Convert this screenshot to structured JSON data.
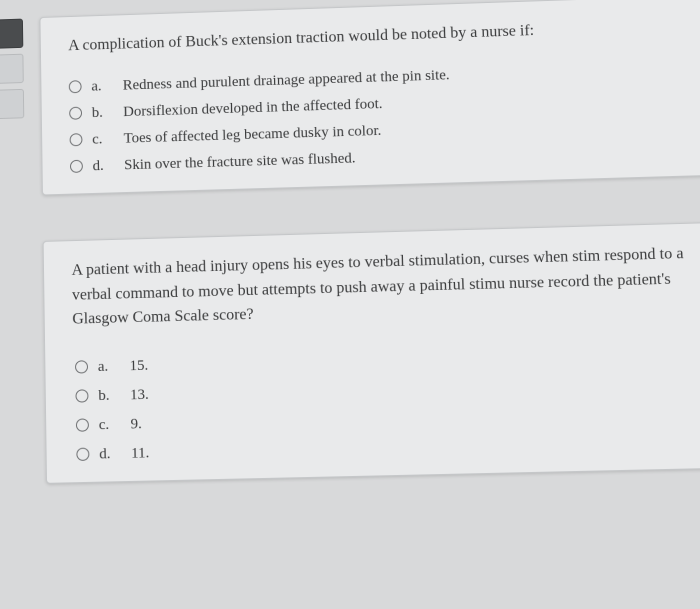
{
  "questions": [
    {
      "prompt": "A complication of Buck's extension traction would be noted by a nurse if:",
      "options": [
        {
          "letter": "a.",
          "text": "Redness and purulent drainage appeared at the pin site."
        },
        {
          "letter": "b.",
          "text": "Dorsiflexion developed in the affected foot."
        },
        {
          "letter": "c.",
          "text": "Toes of affected leg became dusky in color."
        },
        {
          "letter": "d.",
          "text": "Skin over the fracture site was flushed."
        }
      ]
    },
    {
      "prompt": "A patient with a head injury opens his eyes to verbal stimulation, curses when stim respond to a verbal command to move but attempts to push away a painful stimu nurse record the patient's Glasgow Coma Scale score?",
      "options": [
        {
          "letter": "a.",
          "text": "15."
        },
        {
          "letter": "b.",
          "text": "13."
        },
        {
          "letter": "c.",
          "text": "9."
        },
        {
          "letter": "d.",
          "text": "11."
        }
      ]
    }
  ],
  "colors": {
    "page_bg": "#d8d9da",
    "card_bg": "#e9eaeb",
    "card_border": "#c5c7c9",
    "text": "#3a3b3c",
    "radio_border": "#6d6f71"
  }
}
